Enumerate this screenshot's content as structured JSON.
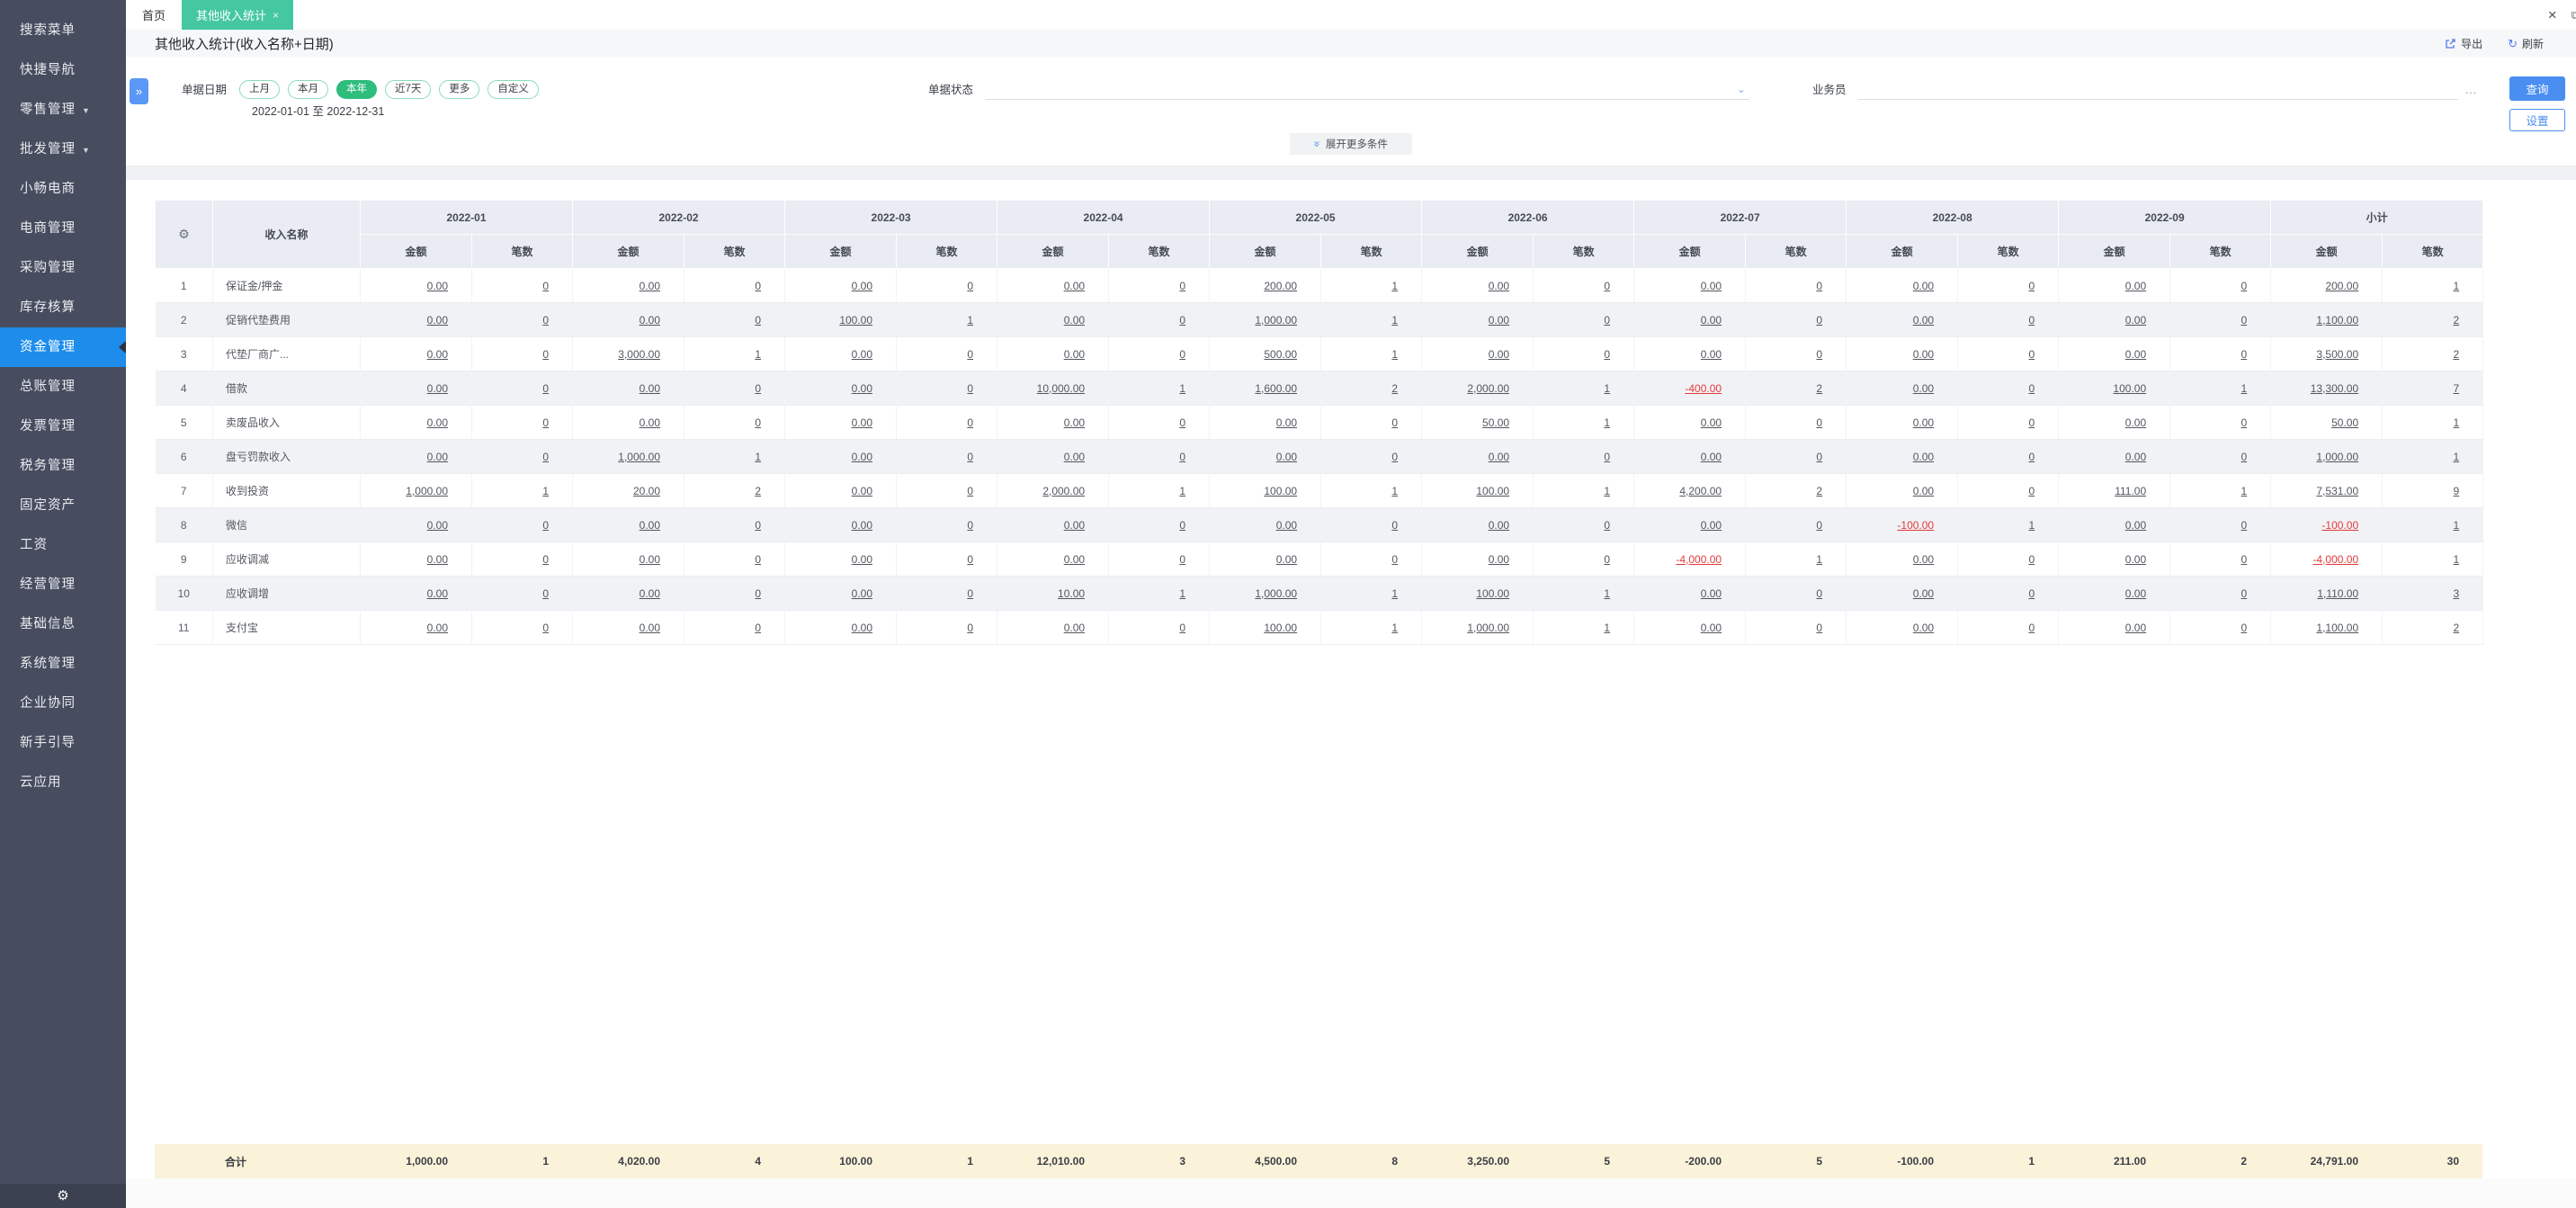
{
  "sidebar": {
    "items": [
      {
        "label": "搜索菜单",
        "caret": false,
        "active": false
      },
      {
        "label": "快捷导航",
        "caret": false,
        "active": false
      },
      {
        "label": "零售管理",
        "caret": true,
        "active": false
      },
      {
        "label": "批发管理",
        "caret": true,
        "active": false
      },
      {
        "label": "小畅电商",
        "caret": false,
        "active": false
      },
      {
        "label": "电商管理",
        "caret": false,
        "active": false
      },
      {
        "label": "采购管理",
        "caret": false,
        "active": false
      },
      {
        "label": "库存核算",
        "caret": false,
        "active": false
      },
      {
        "label": "资金管理",
        "caret": false,
        "active": true
      },
      {
        "label": "总账管理",
        "caret": false,
        "active": false
      },
      {
        "label": "发票管理",
        "caret": false,
        "active": false
      },
      {
        "label": "税务管理",
        "caret": false,
        "active": false
      },
      {
        "label": "固定资产",
        "caret": false,
        "active": false
      },
      {
        "label": "工资",
        "caret": false,
        "active": false
      },
      {
        "label": "经营管理",
        "caret": false,
        "active": false
      },
      {
        "label": "基础信息",
        "caret": false,
        "active": false
      },
      {
        "label": "系统管理",
        "caret": false,
        "active": false
      },
      {
        "label": "企业协同",
        "caret": false,
        "active": false
      },
      {
        "label": "新手引导",
        "caret": false,
        "active": false
      },
      {
        "label": "云应用",
        "caret": false,
        "active": false
      }
    ]
  },
  "tabs": {
    "home": "首页",
    "active": "其他收入统计",
    "close": "×"
  },
  "header": {
    "title": "其他收入统计(收入名称+日期)",
    "export_label": "导出",
    "refresh_label": "刷新"
  },
  "filters": {
    "date_label": "单据日期",
    "date_pills": [
      "上月",
      "本月",
      "本年",
      "近7天",
      "更多",
      "自定义"
    ],
    "selected_pill": "本年",
    "date_range": "2022-01-01 至 2022-12-31",
    "status_label": "单据状态",
    "salesman_label": "业务员",
    "more_ellipsis": "...",
    "expand_more_label": "展开更多条件",
    "query_label": "查询",
    "settings_label": "设置"
  },
  "colors": {
    "accent_blue": "#4a8ef2",
    "active_menu_blue": "#1d8ceb",
    "tab_green": "#45c8a2",
    "pill_green": "#2ebd7d",
    "negative_red": "#e23b3b",
    "total_row_beige": "#fbf2da"
  },
  "table": {
    "name_header": "收入名称",
    "amount_label": "金额",
    "count_label": "笔数",
    "months": [
      "2022-01",
      "2022-02",
      "2022-03",
      "2022-04",
      "2022-05",
      "2022-06",
      "2022-07",
      "2022-08",
      "2022-09",
      "小计"
    ],
    "rows": [
      {
        "index": "1",
        "name": "保证金/押金",
        "cells": [
          "0.00",
          "0",
          "0.00",
          "0",
          "0.00",
          "0",
          "0.00",
          "0",
          "200.00",
          "1",
          "0.00",
          "0",
          "0.00",
          "0",
          "0.00",
          "0",
          "0.00",
          "0",
          "200.00",
          "1"
        ]
      },
      {
        "index": "2",
        "name": "促销代垫费用",
        "cells": [
          "0.00",
          "0",
          "0.00",
          "0",
          "100.00",
          "1",
          "0.00",
          "0",
          "1,000.00",
          "1",
          "0.00",
          "0",
          "0.00",
          "0",
          "0.00",
          "0",
          "0.00",
          "0",
          "1,100.00",
          "2"
        ]
      },
      {
        "index": "3",
        "name": "代垫厂商广...",
        "cells": [
          "0.00",
          "0",
          "3,000.00",
          "1",
          "0.00",
          "0",
          "0.00",
          "0",
          "500.00",
          "1",
          "0.00",
          "0",
          "0.00",
          "0",
          "0.00",
          "0",
          "0.00",
          "0",
          "3,500.00",
          "2"
        ]
      },
      {
        "index": "4",
        "name": "借款",
        "cells": [
          "0.00",
          "0",
          "0.00",
          "0",
          "0.00",
          "0",
          "10,000.00",
          "1",
          "1,600.00",
          "2",
          "2,000.00",
          "1",
          "-400.00",
          "2",
          "0.00",
          "0",
          "100.00",
          "1",
          "13,300.00",
          "7"
        ]
      },
      {
        "index": "5",
        "name": "卖废品收入",
        "cells": [
          "0.00",
          "0",
          "0.00",
          "0",
          "0.00",
          "0",
          "0.00",
          "0",
          "0.00",
          "0",
          "50.00",
          "1",
          "0.00",
          "0",
          "0.00",
          "0",
          "0.00",
          "0",
          "50.00",
          "1"
        ]
      },
      {
        "index": "6",
        "name": "盘亏罚款收入",
        "cells": [
          "0.00",
          "0",
          "1,000.00",
          "1",
          "0.00",
          "0",
          "0.00",
          "0",
          "0.00",
          "0",
          "0.00",
          "0",
          "0.00",
          "0",
          "0.00",
          "0",
          "0.00",
          "0",
          "1,000.00",
          "1"
        ]
      },
      {
        "index": "7",
        "name": "收到投资",
        "cells": [
          "1,000.00",
          "1",
          "20.00",
          "2",
          "0.00",
          "0",
          "2,000.00",
          "1",
          "100.00",
          "1",
          "100.00",
          "1",
          "4,200.00",
          "2",
          "0.00",
          "0",
          "111.00",
          "1",
          "7,531.00",
          "9"
        ]
      },
      {
        "index": "8",
        "name": "微信",
        "cells": [
          "0.00",
          "0",
          "0.00",
          "0",
          "0.00",
          "0",
          "0.00",
          "0",
          "0.00",
          "0",
          "0.00",
          "0",
          "0.00",
          "0",
          "-100.00",
          "1",
          "0.00",
          "0",
          "-100.00",
          "1"
        ]
      },
      {
        "index": "9",
        "name": "应收调减",
        "cells": [
          "0.00",
          "0",
          "0.00",
          "0",
          "0.00",
          "0",
          "0.00",
          "0",
          "0.00",
          "0",
          "0.00",
          "0",
          "-4,000.00",
          "1",
          "0.00",
          "0",
          "0.00",
          "0",
          "-4,000.00",
          "1"
        ]
      },
      {
        "index": "10",
        "name": "应收调增",
        "cells": [
          "0.00",
          "0",
          "0.00",
          "0",
          "0.00",
          "0",
          "10.00",
          "1",
          "1,000.00",
          "1",
          "100.00",
          "1",
          "0.00",
          "0",
          "0.00",
          "0",
          "0.00",
          "0",
          "1,110.00",
          "3"
        ]
      },
      {
        "index": "11",
        "name": "支付宝",
        "cells": [
          "0.00",
          "0",
          "0.00",
          "0",
          "0.00",
          "0",
          "0.00",
          "0",
          "100.00",
          "1",
          "1,000.00",
          "1",
          "0.00",
          "0",
          "0.00",
          "0",
          "0.00",
          "0",
          "1,100.00",
          "2"
        ]
      }
    ],
    "footer": {
      "label": "合计",
      "cells": [
        "1,000.00",
        "1",
        "4,020.00",
        "4",
        "100.00",
        "1",
        "12,010.00",
        "3",
        "4,500.00",
        "8",
        "3,250.00",
        "5",
        "-200.00",
        "5",
        "-100.00",
        "1",
        "211.00",
        "2",
        "24,791.00",
        "30"
      ]
    }
  }
}
